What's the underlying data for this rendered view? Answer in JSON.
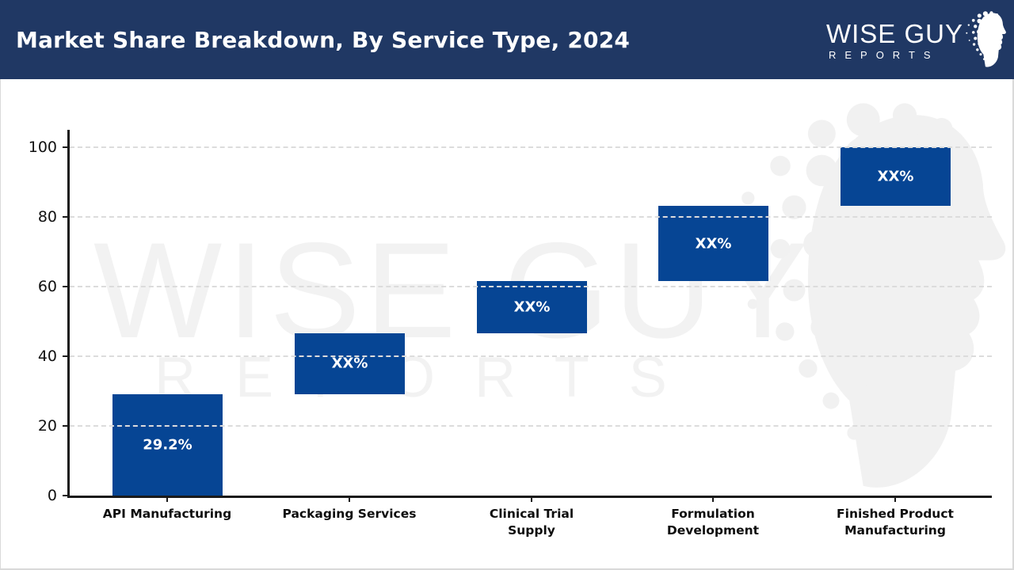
{
  "header": {
    "title": "Market Share Breakdown, By Service Type, 2024",
    "brand_top": "WISE GUY",
    "brand_bottom": "REPORTS"
  },
  "watermark": {
    "line1": "WISE GUY",
    "line2": "REPORTS"
  },
  "colors": {
    "header_bg": "#203864",
    "bar": "#064594",
    "axis": "#1a1a1a",
    "grid": "#dcdcdc",
    "bar_label": "#ffffff",
    "watermark": "#f2f2f2"
  },
  "chart_data": {
    "type": "bar",
    "subtype": "waterfall",
    "title": "Market Share Breakdown, By Service Type, 2024",
    "categories": [
      "API Manufacturing",
      "Packaging Services",
      "Clinical Trial Supply",
      "Formulation Development",
      "Finished Product Manufacturing"
    ],
    "category_lines": [
      [
        "API Manufacturing"
      ],
      [
        "Packaging Services"
      ],
      [
        "Clinical Trial",
        "Supply"
      ],
      [
        "Formulation",
        "Development"
      ],
      [
        "Finished Product",
        "Manufacturing"
      ]
    ],
    "segments": [
      {
        "category": "API Manufacturing",
        "label": "29.2%",
        "start": 0,
        "end": 29.2
      },
      {
        "category": "Packaging Services",
        "label": "XX%",
        "start": 29.2,
        "end": 46.6
      },
      {
        "category": "Clinical Trial Supply",
        "label": "XX%",
        "start": 46.6,
        "end": 61.5
      },
      {
        "category": "Formulation Development",
        "label": "XX%",
        "start": 61.5,
        "end": 83.2
      },
      {
        "category": "Finished Product Manufacturing",
        "label": "XX%",
        "start": 83.2,
        "end": 100
      }
    ],
    "yticks": [
      0,
      20,
      40,
      60,
      80,
      100
    ],
    "ylim": [
      0,
      105
    ],
    "xlabel": "",
    "ylabel": "",
    "grid": "horizontal-dashed",
    "legend": "none"
  }
}
